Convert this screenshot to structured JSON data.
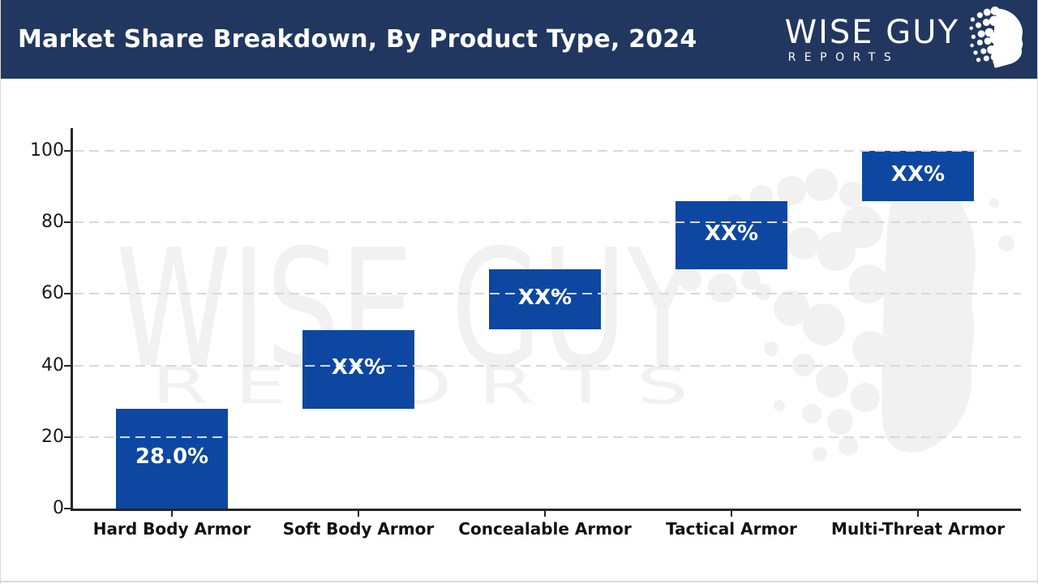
{
  "header": {
    "title": "Market Share Breakdown, By Product Type, 2024",
    "bg_color": "#21375f"
  },
  "logo": {
    "line1": "WISE GUY",
    "line2": "REPORTS"
  },
  "watermark": {
    "line1": "WISE GUY",
    "line2": "R E P O R T S",
    "color": "#f1f1f1"
  },
  "chart_data": {
    "type": "bar",
    "subtype": "waterfall",
    "title": "Market Share Breakdown, By Product Type, 2024",
    "categories": [
      "Hard Body Armor",
      "Soft Body Armor",
      "Concealable Armor",
      "Tactical Armor",
      "Multi-Threat Armor"
    ],
    "segments": [
      {
        "category": "Hard Body Armor",
        "start": 0,
        "end": 28,
        "value": 28,
        "label": "28.0%"
      },
      {
        "category": "Soft Body Armor",
        "start": 28,
        "end": 50,
        "value": 22,
        "label": "XX%"
      },
      {
        "category": "Concealable Armor",
        "start": 50,
        "end": 67,
        "value": 17,
        "label": "XX%"
      },
      {
        "category": "Tactical Armor",
        "start": 67,
        "end": 86,
        "value": 19,
        "label": "XX%"
      },
      {
        "category": "Multi-Threat Armor",
        "start": 86,
        "end": 100,
        "value": 14,
        "label": "XX%"
      }
    ],
    "yticks": [
      0,
      20,
      40,
      60,
      80,
      100
    ],
    "ylim": [
      0,
      106
    ],
    "xlabel": "",
    "ylabel": "",
    "bar_color": "#0d47a1",
    "grid": true,
    "grid_style": "dashed",
    "grid_color": "#d9d9d9",
    "legend": "none"
  }
}
